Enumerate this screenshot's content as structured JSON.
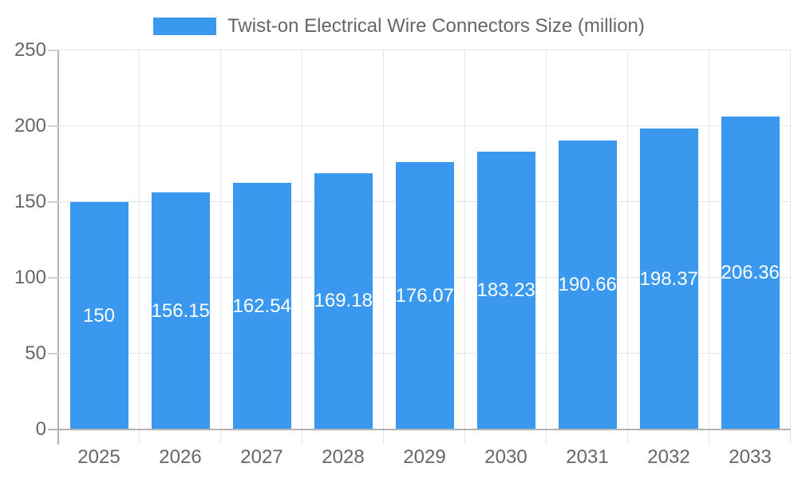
{
  "legend": {
    "label": "Twist-on Electrical Wire Connectors Size (million)"
  },
  "colors": {
    "bar": "#3a99ee",
    "grid": "#e6e6e6",
    "axis": "#b3b3b3",
    "tick": "#cfcfcf",
    "tick_text": "#666666",
    "value_label": "#ffffff"
  },
  "chart_data": {
    "type": "bar",
    "title": "Twist-on Electrical Wire Connectors Size (million)",
    "categories": [
      "2025",
      "2026",
      "2027",
      "2028",
      "2029",
      "2030",
      "2031",
      "2032",
      "2033"
    ],
    "values": [
      150,
      156.15,
      162.54,
      169.18,
      176.07,
      183.23,
      190.66,
      198.37,
      206.36
    ],
    "value_labels": [
      "150",
      "156.15",
      "162.54",
      "169.18",
      "176.07",
      "183.23",
      "190.66",
      "198.37",
      "206.36"
    ],
    "xlabel": "",
    "ylabel": "",
    "ylim": [
      0,
      250
    ],
    "yticks": [
      0,
      50,
      100,
      150,
      200,
      250
    ],
    "grid": true,
    "legend_position": "top"
  }
}
